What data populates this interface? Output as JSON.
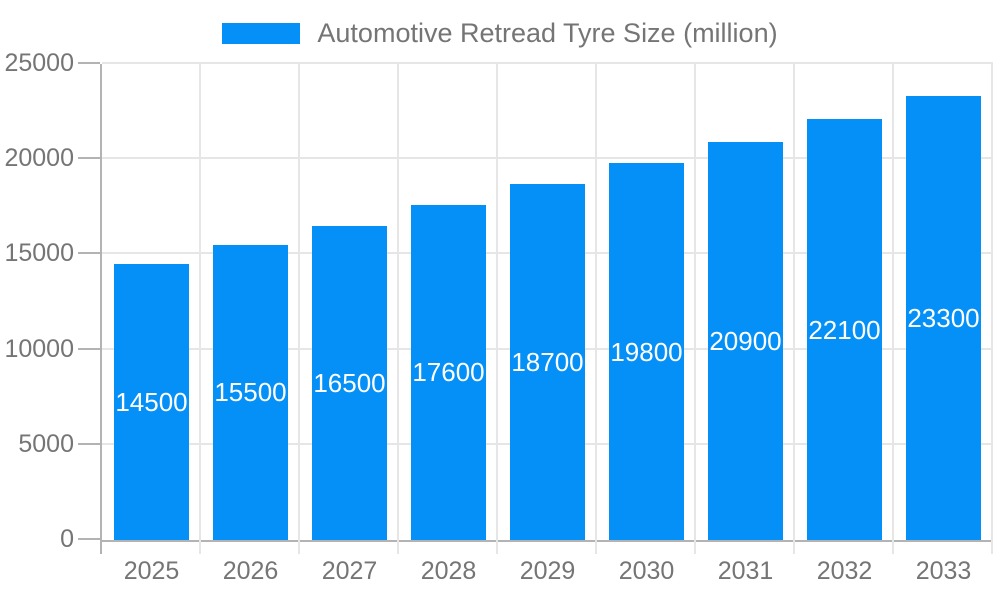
{
  "chart_data": {
    "type": "bar",
    "title": "Automotive Retread Tyre Size (million)",
    "legend": {
      "label": "Automotive Retread Tyre Size (million)",
      "position": "top"
    },
    "categories": [
      "2025",
      "2026",
      "2027",
      "2028",
      "2029",
      "2030",
      "2031",
      "2032",
      "2033"
    ],
    "series": [
      {
        "name": "Automotive Retread Tyre Size (million)",
        "values": [
          14500,
          15500,
          16500,
          17600,
          18700,
          19800,
          20900,
          22100,
          23300
        ]
      }
    ],
    "xlabel": "",
    "ylabel": "",
    "ylim": [
      0,
      25000
    ],
    "yticks": [
      0,
      5000,
      10000,
      15000,
      20000,
      25000
    ],
    "grid": true,
    "bar_value_labels_visible": true,
    "colors": {
      "bar": "#0590f8",
      "bar_label_text": "#ffffff",
      "axis_text": "#757575",
      "grid_line": "#e6e6e6",
      "axis_line": "#b3b3b3"
    }
  }
}
